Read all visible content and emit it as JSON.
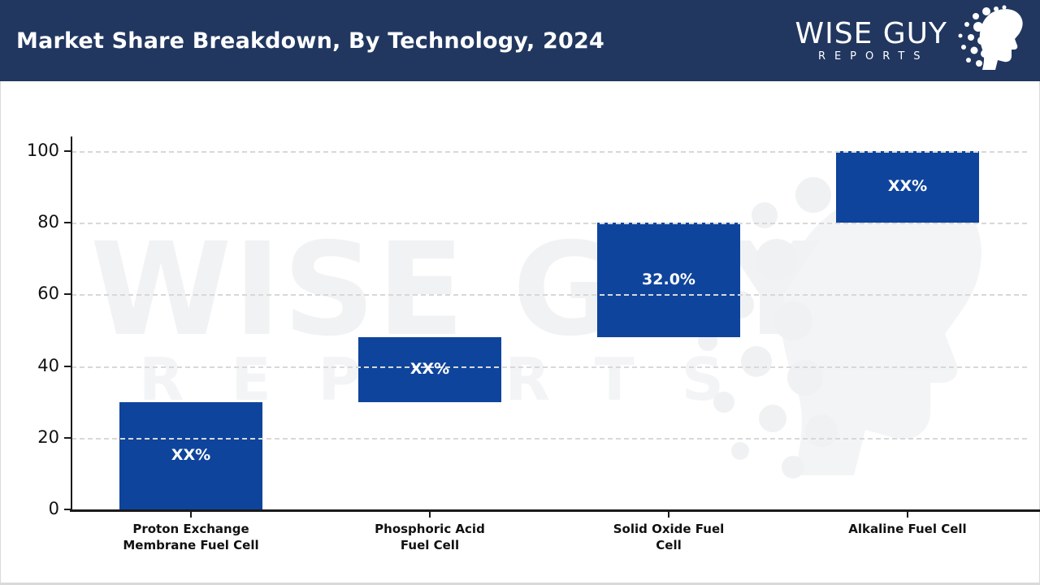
{
  "header": {
    "title": "Market Share Breakdown, By Technology, 2024",
    "logo": {
      "main": "WISE GUY",
      "sub": "REPORTS"
    }
  },
  "watermark": {
    "main": "WISE GUY",
    "sub": "REPORTS"
  },
  "colors": {
    "header_bg": "#213760",
    "bar": "#0e449c",
    "grid": "#d8d8d8",
    "title_text": "#ffffff"
  },
  "chart_data": {
    "type": "bar",
    "subtype": "waterfall",
    "title": "Market Share Breakdown, By Technology, 2024",
    "xlabel": "",
    "ylabel": "",
    "ylim": [
      0,
      100
    ],
    "yticks": [
      0,
      20,
      40,
      60,
      80,
      100
    ],
    "grid": "horizontal-dashed",
    "legend": "none",
    "categories": [
      "Proton Exchange Membrane Fuel Cell",
      "Phosphoric Acid Fuel Cell",
      "Solid Oxide Fuel Cell",
      "Alkaline Fuel Cell"
    ],
    "category_lines": [
      [
        "Proton Exchange",
        "Membrane Fuel Cell"
      ],
      [
        "Phosphoric Acid",
        "Fuel Cell"
      ],
      [
        "Solid Oxide Fuel",
        "Cell"
      ],
      [
        "Alkaline Fuel Cell"
      ]
    ],
    "bars": [
      {
        "start": 0,
        "end": 30,
        "value": 30,
        "label": "XX%"
      },
      {
        "start": 30,
        "end": 48,
        "value": 18,
        "label": "XX%"
      },
      {
        "start": 48,
        "end": 80,
        "value": 32,
        "label": "32.0%"
      },
      {
        "start": 80,
        "end": 100,
        "value": 20,
        "label": "XX%"
      }
    ]
  }
}
